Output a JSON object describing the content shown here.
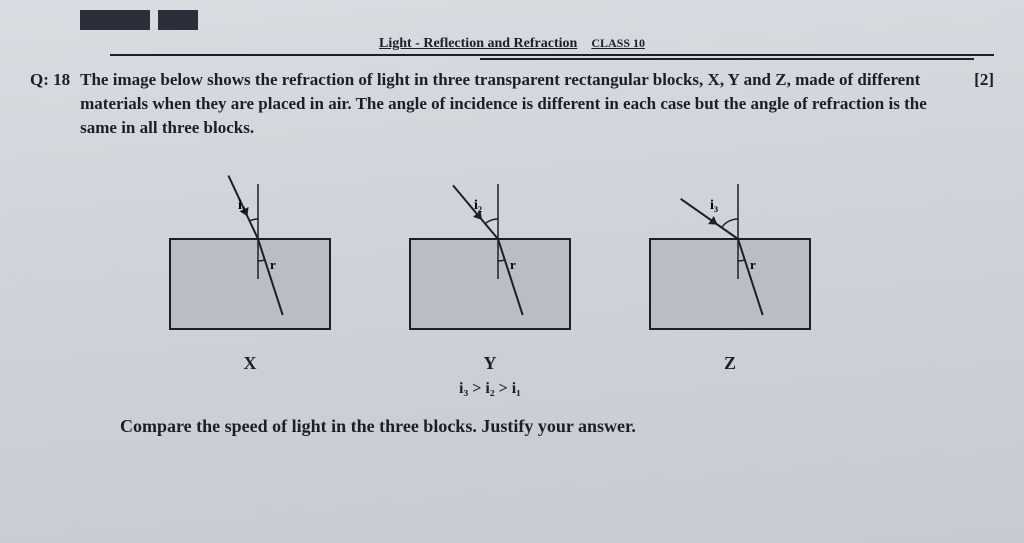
{
  "header": {
    "topic": "Light - Reflection and Refraction",
    "class_label": "CLASS 10"
  },
  "question": {
    "number": "Q: 18",
    "text": "The image below shows the refraction of light in three transparent rectangular blocks, X, Y and Z, made of different materials when they are placed in air. The angle of incidence is different in each case but the angle of refraction is the same in all three blocks.",
    "marks": "[2]"
  },
  "diagrams": {
    "blocks": [
      {
        "label": "X",
        "incident_label": "i₁",
        "refraction_label": "r",
        "incident_angle": 25
      },
      {
        "label": "Y",
        "incident_label": "i₂",
        "refraction_label": "r",
        "incident_angle": 40
      },
      {
        "label": "Z",
        "incident_label": "i₃",
        "refraction_label": "r",
        "incident_angle": 55
      }
    ],
    "refraction_angle": 18,
    "inequality": "i₃ > i₂ > i₁",
    "colors": {
      "block_fill": "#b8bec4",
      "block_stroke": "#1a1f2a",
      "ray": "#1a1f2a",
      "arc": "#1a1f2a"
    }
  },
  "followup": "Compare the speed of light in the three blocks. Justify your answer."
}
